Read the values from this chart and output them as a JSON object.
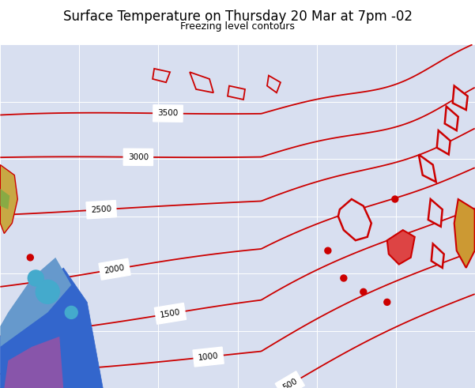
{
  "title": "Surface Temperature on Thursday 20 Mar at 7pm -02",
  "subtitle": "Freezing level contours",
  "title_fontsize": 12,
  "subtitle_fontsize": 9,
  "ocean_color": "#d8dff0",
  "contour_color": "#cc0000",
  "contour_lw": 1.3,
  "label_fontsize": 7.5,
  "grid_color": "#ffffff",
  "grid_linewidth": 0.7,
  "figsize": [
    6.01,
    4.91
  ],
  "dpi": 100,
  "contour_levels": [
    500,
    1000,
    1500,
    2000,
    2500,
    3000,
    3500
  ]
}
